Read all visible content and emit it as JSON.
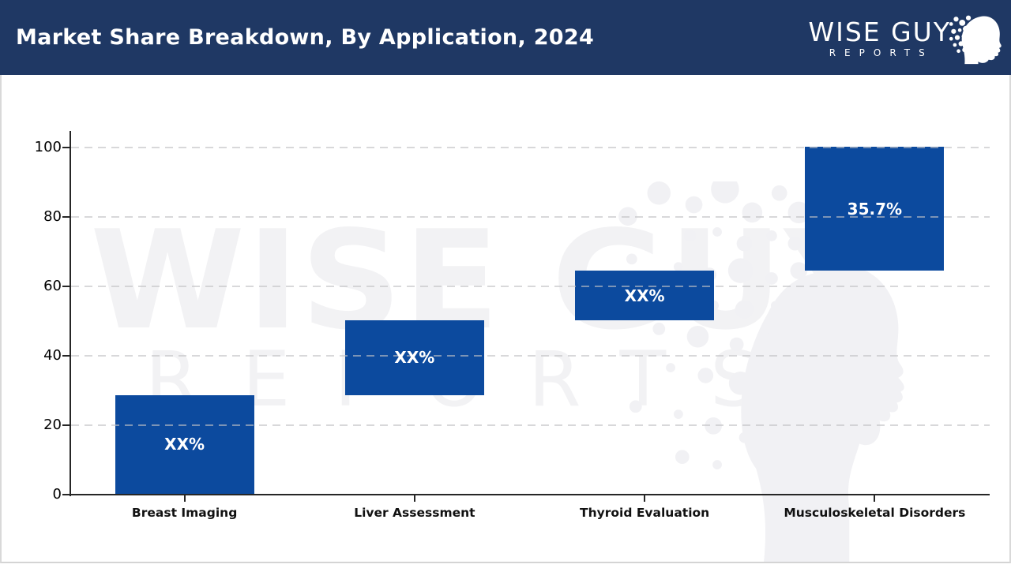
{
  "header": {
    "title": "Market Share Breakdown, By Application, 2024",
    "logo": {
      "brand": "WISE GUY",
      "sub": "REPORTS"
    }
  },
  "watermark": {
    "brand": "WISE GUY",
    "sub": "REPORTS"
  },
  "chart_data": {
    "type": "bar",
    "subtype": "waterfall",
    "title": "Market Share Breakdown, By Application, 2024",
    "categories": [
      "Breast Imaging",
      "Liver Assessment",
      "Thyroid Evaluation",
      "Musculoskeletal Disorders"
    ],
    "bars": [
      {
        "category": "Breast Imaging",
        "start": 0,
        "end": 28.5,
        "label": "XX%"
      },
      {
        "category": "Liver Assessment",
        "start": 28.5,
        "end": 50,
        "label": "XX%"
      },
      {
        "category": "Thyroid Evaluation",
        "start": 50,
        "end": 64.3,
        "label": "XX%"
      },
      {
        "category": "Musculoskeletal Disorders",
        "start": 64.3,
        "end": 100,
        "label": "35.7%"
      }
    ],
    "xlabel": "",
    "ylabel": "",
    "ylim": [
      0,
      105
    ],
    "yticks": [
      0,
      20,
      40,
      60,
      80,
      100
    ],
    "grid": "horizontal-dashed",
    "legend": false,
    "colors": {
      "bar": "#0c4a9e",
      "grid": "#d7d7d7",
      "axis": "#262626",
      "header_bg": "#1f3864",
      "watermark": "#f2f2f4",
      "bar_label_text": "#ffffff"
    }
  }
}
